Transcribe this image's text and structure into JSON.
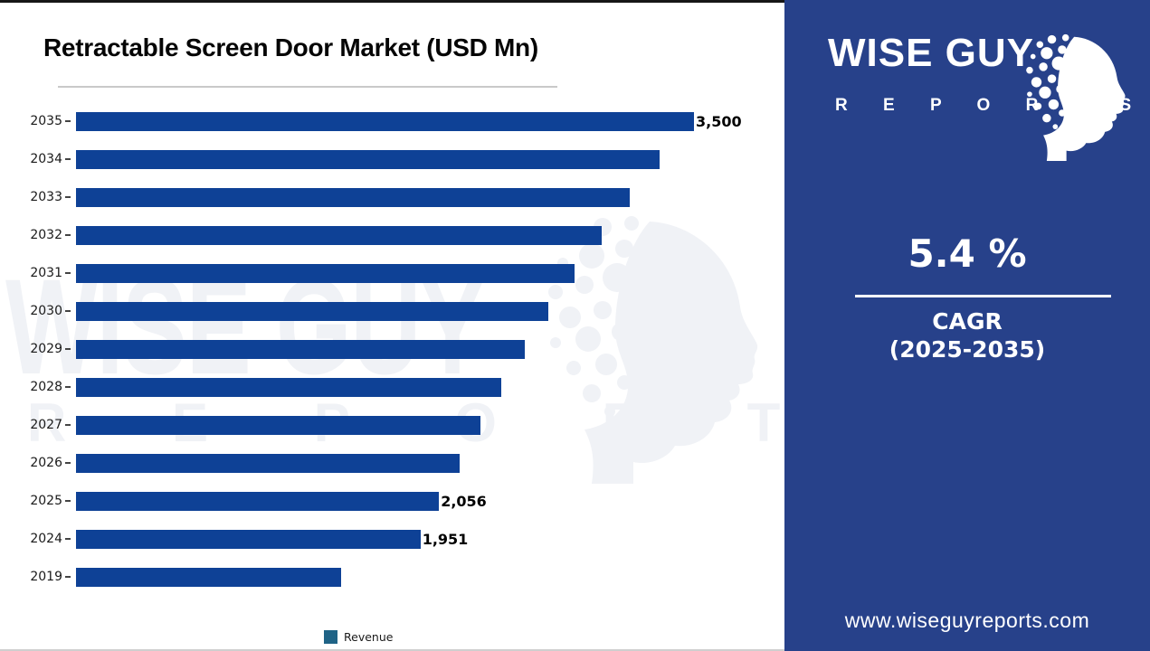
{
  "title": "Retractable Screen Door Market (USD Mn)",
  "chart_data": {
    "type": "bar",
    "orientation": "horizontal",
    "title": "Retractable Screen Door Market (USD Mn)",
    "xlabel": "",
    "ylabel": "",
    "xlim": [
      0,
      3900
    ],
    "grid": false,
    "legend": [
      "Revenue"
    ],
    "legend_position": "bottom",
    "categories": [
      "2035",
      "2034",
      "2033",
      "2032",
      "2031",
      "2030",
      "2029",
      "2028",
      "2027",
      "2026",
      "2025",
      "2024",
      "2019"
    ],
    "values": [
      3500,
      3306,
      3136,
      2975,
      2822,
      2676,
      2540,
      2410,
      2288,
      2170,
      2056,
      1951,
      1500
    ],
    "value_labels": [
      "3,500",
      "",
      "",
      "",
      "",
      "",
      "",
      "",
      "",
      "",
      "2,056",
      "1,951",
      ""
    ],
    "max_value": 3500
  },
  "legend": {
    "label": "Revenue"
  },
  "watermark": {
    "line1": "WISE GUY",
    "line2": "R E P O R T S"
  },
  "panel": {
    "logo_line1": "WISE GUY",
    "logo_line2": "R E P O R T S",
    "cagr_value": "5.4 %",
    "cagr_line1": "CAGR",
    "cagr_line2": "(2025-2035)",
    "website": "www.wiseguyreports.com"
  },
  "colors": {
    "bar": "#0e4196",
    "legend_swatch": "#1f6386",
    "panel_background": "#27418a",
    "title_underline": "#c9c9c9",
    "watermark": "#f0f2f6"
  }
}
